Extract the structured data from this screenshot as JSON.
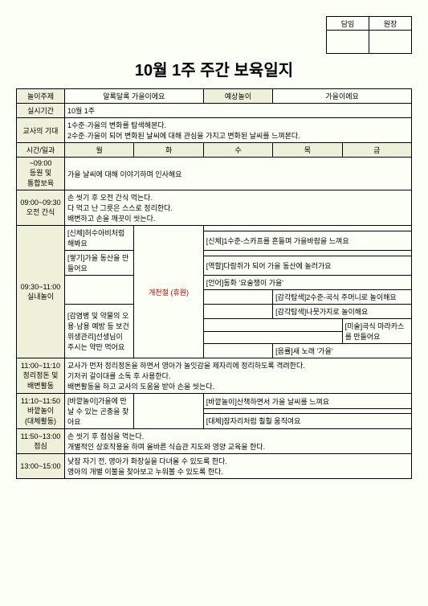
{
  "approval": {
    "col1": "담임",
    "col2": "원장"
  },
  "title": "10월 1주 주간 보육일지",
  "labels": {
    "theme": "놀이주제",
    "themeVal": "알록달록 가을이에요",
    "expected": "예상놀이",
    "expectedVal": "가을이에요",
    "period": "실시기간",
    "periodVal": "10월 1주",
    "teacher": "교사의 기대",
    "teacherVal": "1수준·가을의 변화를 탐색해본다.\n2수준·가을이 되어 변화된 날씨에 대해 관심을 가지고 변화된 날씨를 느껴본다.",
    "timeDay": "시간/일과"
  },
  "days": {
    "mon": "월",
    "tue": "화",
    "wed": "수",
    "thu": "목",
    "fri": "금"
  },
  "rows": {
    "r1": {
      "time": "~09:00\n등원 및\n통합보육",
      "text": "가을 날씨에 대해 이야기하며 인사해요"
    },
    "r2": {
      "time": "09:00~09:30\n오전 간식",
      "text": "손 씻기 후 오전 간식 먹는다.\n다 먹고 난 그릇은 스스로 정리한다.\n배변하고 손을 깨끗이 씻는다."
    },
    "indoor": {
      "time": "09:30~11:00\n실내놀이",
      "a1": "[신체]허수아비처럼 해봐요",
      "a2": "[쌓기]가을 동산을 만들어요",
      "a3": "[감염병 및 약물의 오용·남용 예방 등 보건위생관리]선생님이 주시는 약만 먹어요",
      "tueHoliday": "개천절 (휴원)",
      "b1": "[신체]1수준-스카프를 흔들며 가을바람을 느껴요",
      "b2": "[역할]다람쥐가 되어 가을 동산에 놀러가요",
      "b3": "[언어]동화 '요술쟁이 가을'",
      "c1": "[감각탐색]2수준-곡식 주머니로 놀이해요",
      "c2": "[감각탐색]나뭇가지로 놀이해요",
      "d1": "[미술]곡식 마라카스를 만들어요",
      "e1": "[음률]새 노래 '가을'"
    },
    "r4": {
      "time": "11:00~11:10\n정리정돈 및\n배변활동",
      "text": "교사가 먼저 정리정돈을 하면서 영아가 놀잇감을 제자리에 정리하도록 격려한다.\n기저귀 갈이대를 소독 후 사용한다.\n배변활동을 하고 교사의 도움을 받아 손을 씻는다."
    },
    "r5": {
      "time": "11:10~11:50\n바깥놀이\n(대체활동)",
      "mon": "[바깥놀이]가을에 만날 수 있는 곤충을 찾아요",
      "outdoor": "[바깥놀이]산책하면서 가을 날씨를 느껴요",
      "alt": "[대체]잠자리처럼 훨훨 움직여요"
    },
    "r6": {
      "time": "11:50~13:00\n점심",
      "text": "손 씻기 후 점심을 먹는다.\n개별적인 상호작용을 하며 올바른 식습관 지도와 영양 교육을 한다."
    },
    "r7": {
      "time": "13:00~15:00",
      "text": "낮잠 자기 전, 영아가 화장실을 다녀올 수 있도록 한다.\n영아의 개별 이불을 찾아보고 누워볼 수 있도록 한다."
    }
  }
}
